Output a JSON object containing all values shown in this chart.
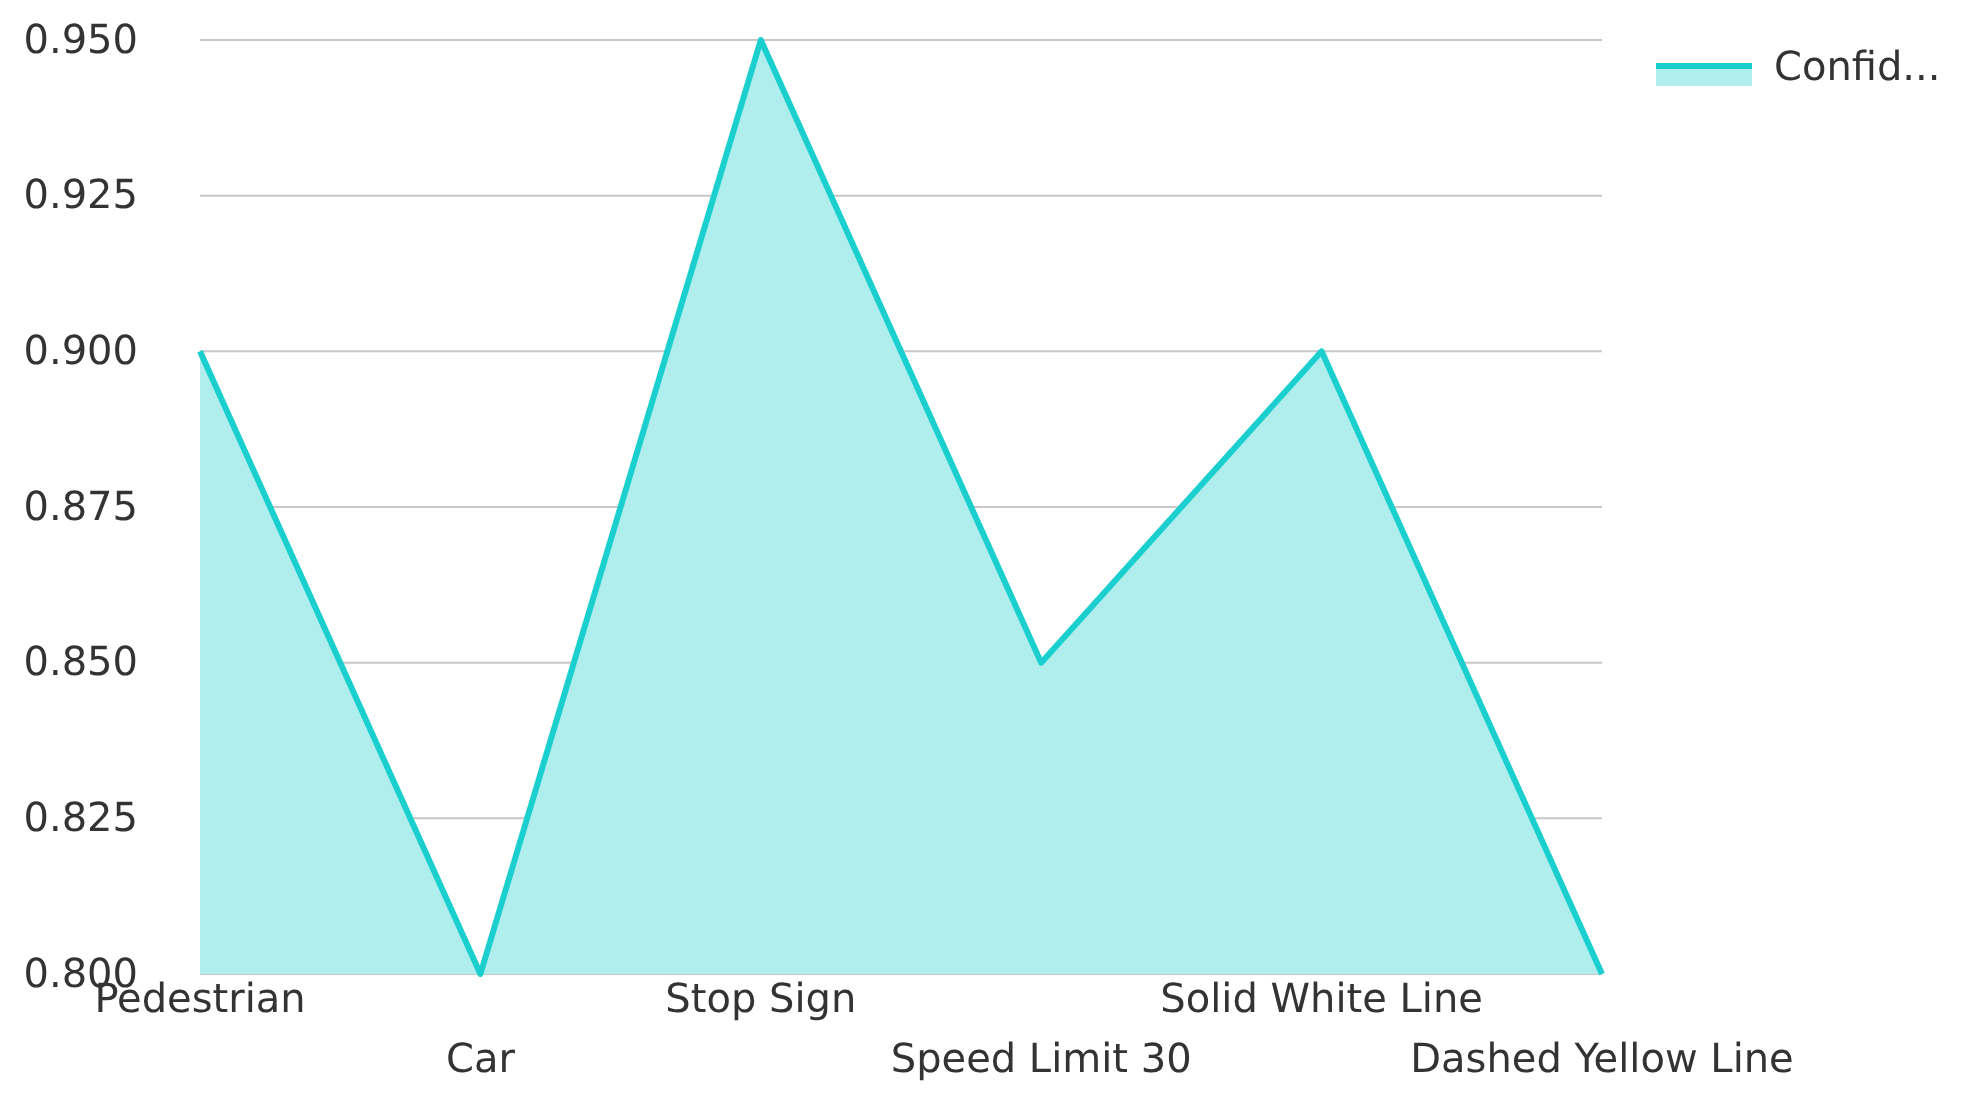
{
  "chart_data": {
    "type": "area",
    "categories": [
      "Pedestrian",
      "Car",
      "Stop Sign",
      "Speed Limit 30",
      "Solid White Line",
      "Dashed Yellow Line"
    ],
    "series": [
      {
        "name": "Confid...",
        "color": "#1ccfcf",
        "values": [
          0.9,
          0.8,
          0.95,
          0.85,
          0.9,
          0.8
        ]
      }
    ],
    "ylim": [
      0.8,
      0.95
    ],
    "yticks": [
      {
        "value": 0.8,
        "label": "0.800"
      },
      {
        "value": 0.825,
        "label": "0.825"
      },
      {
        "value": 0.85,
        "label": "0.850"
      },
      {
        "value": 0.875,
        "label": "0.875"
      },
      {
        "value": 0.9,
        "label": "0.900"
      },
      {
        "value": 0.925,
        "label": "0.925"
      },
      {
        "value": 0.95,
        "label": "0.950"
      }
    ],
    "grid": "y",
    "legend": "top right"
  }
}
